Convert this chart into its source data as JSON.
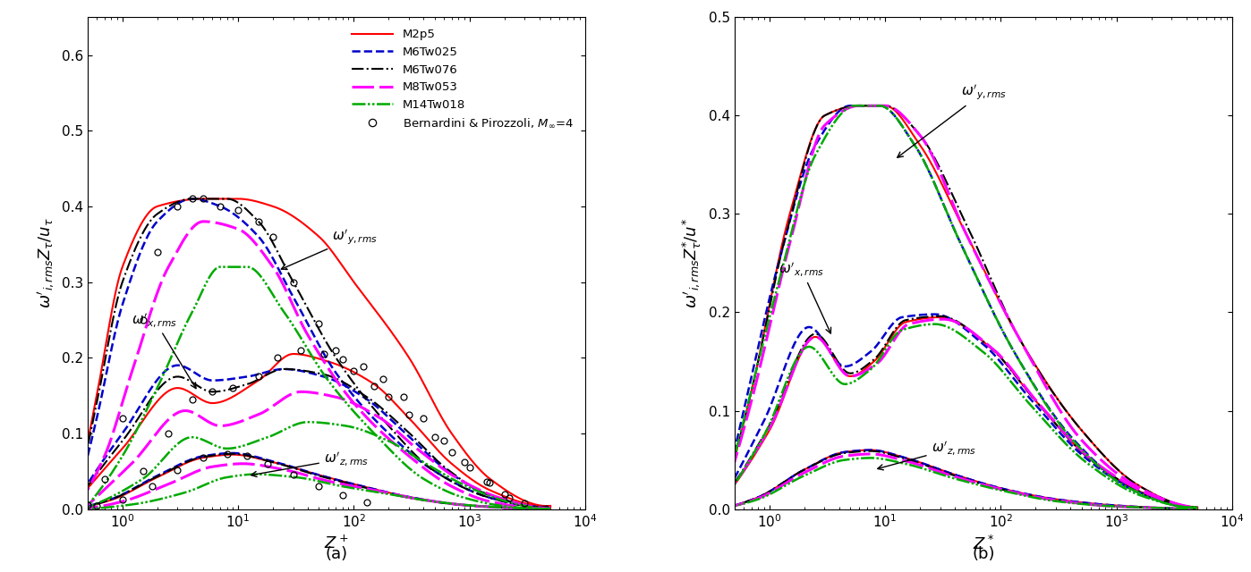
{
  "colors": {
    "M2p5": "#ff0000",
    "M6Tw025": "#0000cc",
    "M6Tw076": "#000000",
    "M8Tw053": "#ff00ff",
    "M14Tw018": "#00aa00"
  },
  "legend_labels": [
    "M2p5",
    "M6Tw025",
    "M6Tw076",
    "M8Tw053",
    "M14Tw018",
    "Bernardini & Pirozzoli, $M_{\\infty}$=4"
  ]
}
